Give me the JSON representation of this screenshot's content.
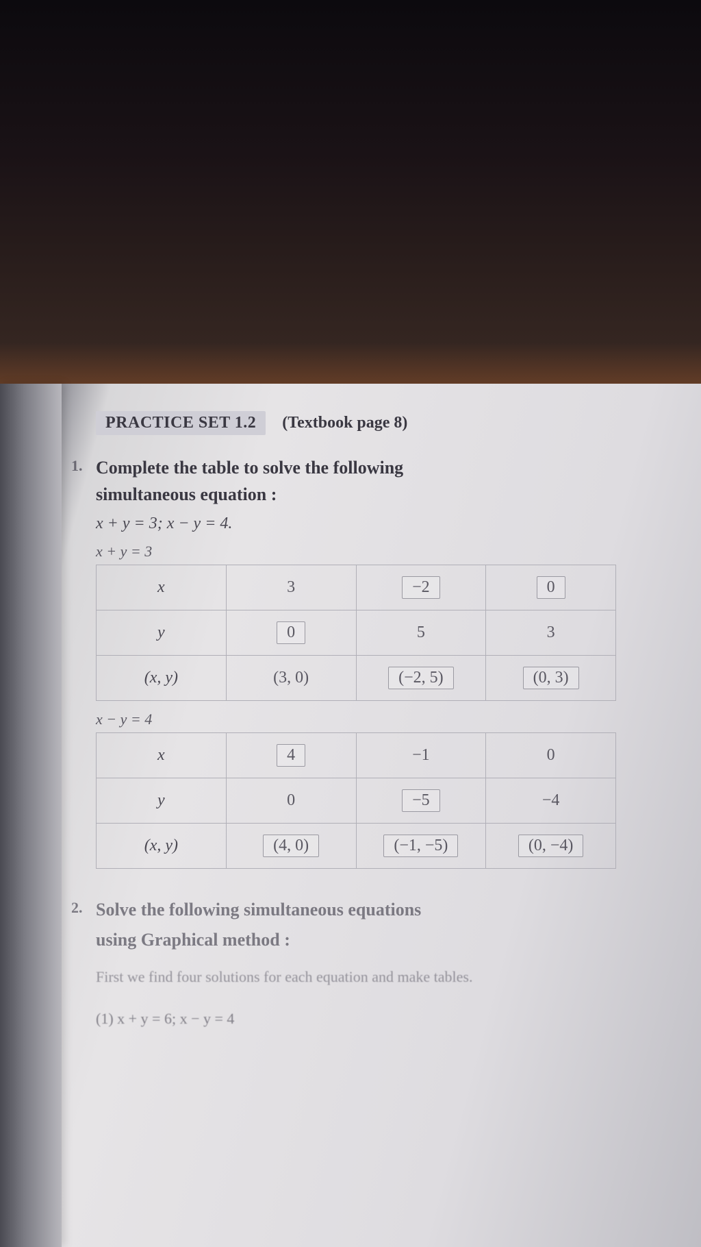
{
  "header": {
    "badge": "PRACTICE SET 1.2",
    "pageref": "(Textbook page 8)"
  },
  "q1": {
    "num": "1.",
    "line1": "Complete the table to solve the following",
    "line2": "simultaneous equation :",
    "eq": "x + y = 3; x − y = 4.",
    "t1": {
      "caption": "x + y = 3",
      "r0": {
        "h": "x",
        "c1": "3",
        "c2": "−2",
        "c3": "0"
      },
      "r1": {
        "h": "y",
        "c1": "0",
        "c2": "5",
        "c3": "3"
      },
      "r2": {
        "h": "(x, y)",
        "c1": "(3, 0)",
        "c2": "(−2, 5)",
        "c3": "(0, 3)"
      }
    },
    "t2": {
      "caption": "x − y = 4",
      "r0": {
        "h": "x",
        "c1": "4",
        "c2": "−1",
        "c3": "0"
      },
      "r1": {
        "h": "y",
        "c1": "0",
        "c2": "−5",
        "c3": "−4"
      },
      "r2": {
        "h": "(x, y)",
        "c1": "(4, 0)",
        "c2": "(−1, −5)",
        "c3": "(0, −4)"
      }
    }
  },
  "q2": {
    "num": "2.",
    "line1": "Solve the following simultaneous equations",
    "line2": "using Graphical method :",
    "sub": "First we find four solutions for each equation and make tables.",
    "part": "(1) x + y = 6; x − y = 4"
  }
}
